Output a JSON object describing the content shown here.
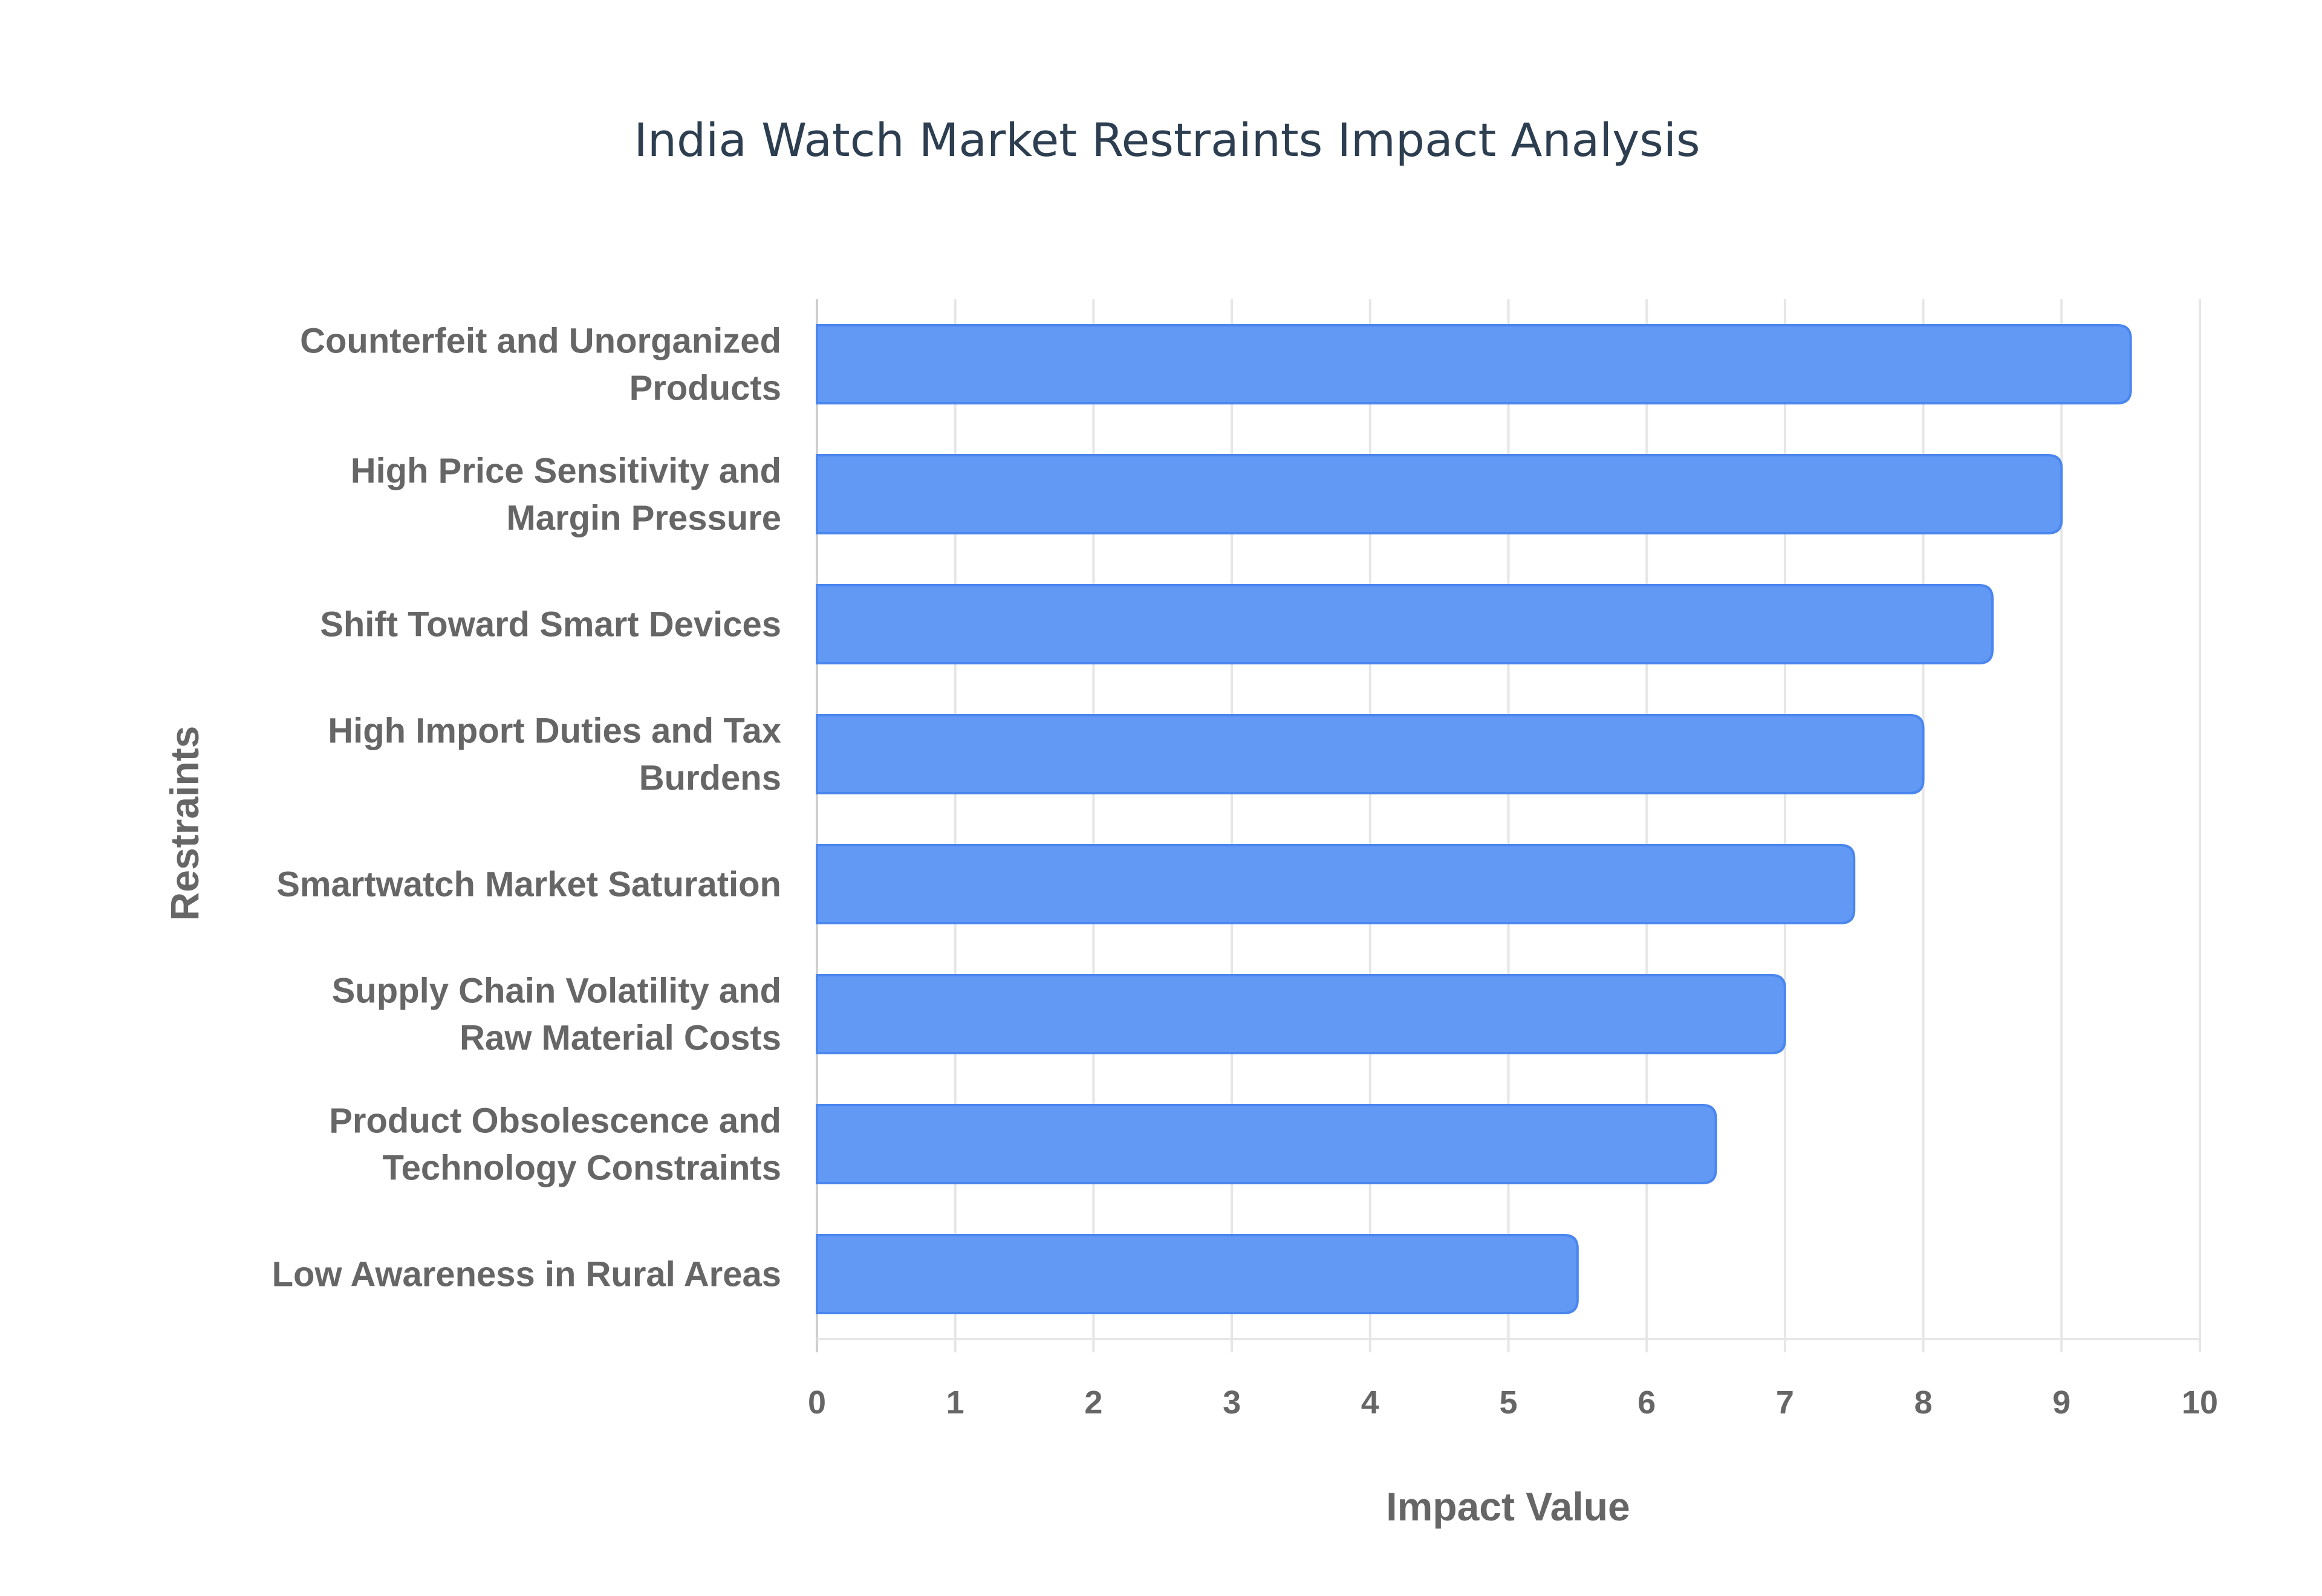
{
  "chart_data": {
    "type": "bar",
    "orientation": "horizontal",
    "title": "India Watch Market Restraints Impact Analysis",
    "xlabel": "Impact Value",
    "ylabel": "Restraints",
    "xlim": [
      0,
      10
    ],
    "xticks": [
      "0",
      "1",
      "2",
      "3",
      "4",
      "5",
      "6",
      "7",
      "8",
      "9",
      "10"
    ],
    "grid": true,
    "bar_color": "#6199f5",
    "bar_border_color": "#4a86ee",
    "categories": [
      [
        "Counterfeit and Unorganized",
        "Products"
      ],
      [
        "High Price Sensitivity and",
        "Margin Pressure"
      ],
      [
        "Shift Toward Smart Devices"
      ],
      [
        "High Import Duties and Tax",
        "Burdens"
      ],
      [
        "Smartwatch Market Saturation"
      ],
      [
        "Supply Chain Volatility and",
        "Raw Material Costs"
      ],
      [
        "Product Obsolescence and",
        "Technology Constraints"
      ],
      [
        "Low Awareness in Rural Areas"
      ]
    ],
    "values": [
      9.5,
      9,
      8.5,
      8,
      7.5,
      7,
      6.5,
      5.5
    ]
  }
}
